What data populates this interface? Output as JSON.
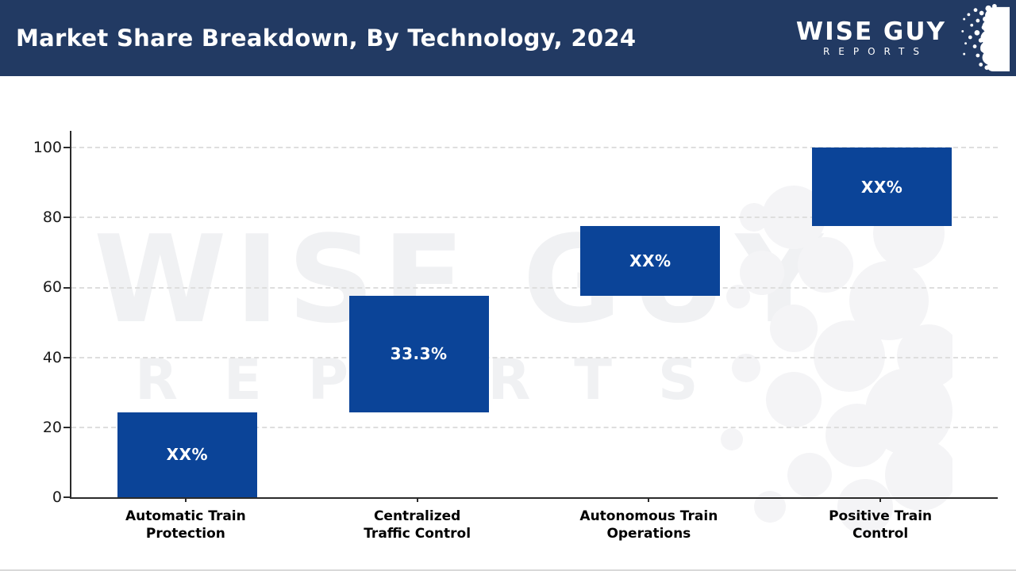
{
  "header": {
    "title": "Market Share Breakdown, By Technology, 2024",
    "logo": {
      "line1": "WISE GUY",
      "line2": "REPORTS"
    }
  },
  "watermark": {
    "line1": "WISE GUY",
    "line2": "REPORTS"
  },
  "chart_data": {
    "type": "bar",
    "subtype": "waterfall",
    "title": "Market Share Breakdown, By Technology, 2024",
    "categories": [
      "Automatic Train\nProtection",
      "Centralized\nTraffic Control",
      "Autonomous Train\nOperations",
      "Positive Train\nControl"
    ],
    "series": [
      {
        "category": "Automatic Train Protection",
        "start": 0,
        "end": 24.3,
        "label": "XX%"
      },
      {
        "category": "Centralized Traffic Control",
        "start": 24.3,
        "end": 57.6,
        "label": "33.3%"
      },
      {
        "category": "Autonomous Train Operations",
        "start": 57.6,
        "end": 77.5,
        "label": "XX%"
      },
      {
        "category": "Positive Train Control",
        "start": 77.5,
        "end": 100,
        "label": "XX%"
      }
    ],
    "xlabel": "",
    "ylabel": "",
    "ylim": [
      0,
      104.8
    ],
    "yticks": [
      0,
      20,
      40,
      60,
      80,
      100
    ],
    "grid": "horizontal-dashed",
    "legend": null,
    "bar_color": "#0b4498"
  },
  "colors": {
    "header_bg": "#223a63",
    "bar": "#0b4498",
    "grid": "#dedede",
    "axis": "#2b2b2b",
    "text": "#111111",
    "watermark": "#f0f1f3",
    "bottom_line": "#d9d9d9"
  }
}
